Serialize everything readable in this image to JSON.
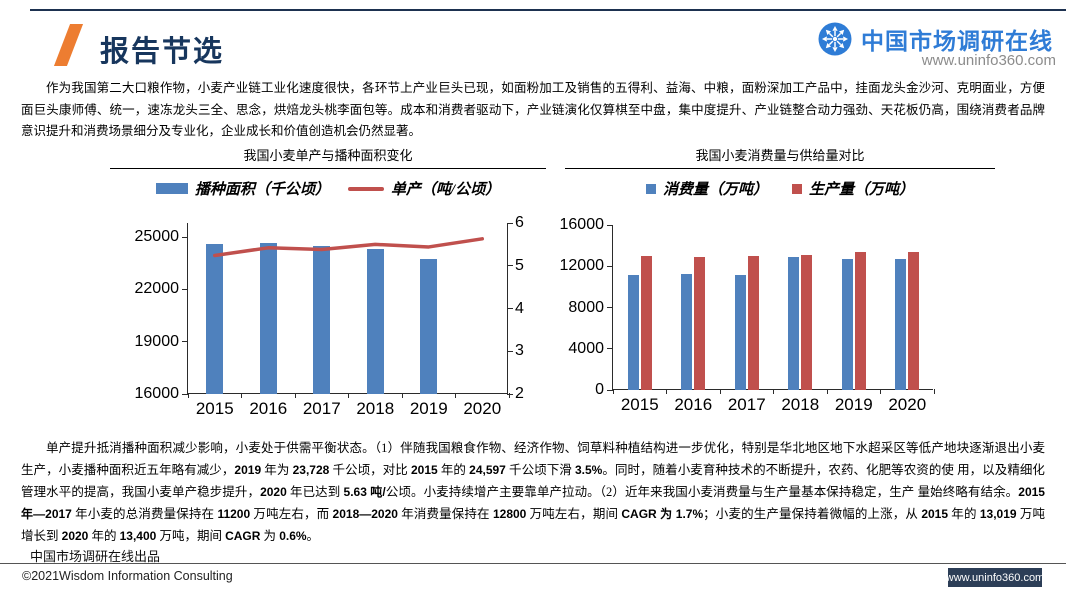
{
  "header": {
    "title": "报告节选",
    "logo_text": "中国市场调研在线",
    "logo_url": "www.uninfo360.com"
  },
  "paragraphs": {
    "intro": "作为我国第二大口粮作物，小麦产业链工业化速度很快，各环节上产业巨头已现，如面粉加工及销售的五得利、益海、中粮，面粉深加工产品中，挂面龙头金沙河、克明面业，方便面巨头康师傅、统一，速冻龙头三全、思念，烘焙龙头桃李面包等。成本和消费者驱动下，产业链演化仅算棋至中盘，集中度提升、产业链整合动力强劲、天花板仍高，围绕消费者品牌意识提升和消费场景细分及专业化，企业成长和价值创造机会仍然显著。",
    "analysis_runs": [
      {
        "t": "单产提升抵消播种面积减少影响，小麦处于供需平衡状态。（1）伴随我国粮食作物、经济作物、饲草料种植结构进一步优化，特别是华北地区地下水超采区等低产地块逐渐退出小麦生产，小麦播种面积近五年略有减少，"
      },
      {
        "t": "2019",
        "b": true
      },
      {
        "t": " 年为 "
      },
      {
        "t": "23,728",
        "b": true
      },
      {
        "t": " 千公顷，对比 "
      },
      {
        "t": "2015",
        "b": true
      },
      {
        "t": " 年的 "
      },
      {
        "t": "24,597",
        "b": true
      },
      {
        "t": " 千公顷下滑 "
      },
      {
        "t": "3.5%",
        "b": true
      },
      {
        "t": "。同时，随着小麦育种技术的不断提升，农药、化肥等农资的使 用，以及精细化管理水平的提高，我国小麦单产稳步提升，"
      },
      {
        "t": "2020",
        "b": true
      },
      {
        "t": " 年已达到 "
      },
      {
        "t": "5.63 吨/",
        "b": true
      },
      {
        "t": "公顷。小麦持续增产主要靠单产拉动。（2）近年来我国小麦消费量与生产量基本保持稳定，生产 量始终略有结余。"
      },
      {
        "t": "2015 年—2017",
        "b": true
      },
      {
        "t": " 年小麦的总消费量保持在 "
      },
      {
        "t": "11200",
        "b": true
      },
      {
        "t": " 万吨左右，而 "
      },
      {
        "t": "2018—2020",
        "b": true
      },
      {
        "t": " 年消费量保持在 "
      },
      {
        "t": "12800",
        "b": true
      },
      {
        "t": " 万吨左右，期间 "
      },
      {
        "t": "CAGR 为 1.7%",
        "b": true
      },
      {
        "t": "；小麦的生产量保持着微幅的上涨，从 "
      },
      {
        "t": "2015",
        "b": true
      },
      {
        "t": " 年的 "
      },
      {
        "t": "13,019",
        "b": true
      },
      {
        "t": " 万吨增长到 "
      },
      {
        "t": "2020",
        "b": true
      },
      {
        "t": " 年的 "
      },
      {
        "t": "13,400",
        "b": true
      },
      {
        "t": " 万吨，期间 "
      },
      {
        "t": "CAGR",
        "b": true
      },
      {
        "t": " 为 "
      },
      {
        "t": "0.6%",
        "b": true
      },
      {
        "t": "。"
      }
    ]
  },
  "footer": {
    "produced_by": "中国市场调研在线出品",
    "copyright": "©2021Wisdom Information Consulting",
    "site_badge": "www.uninfo360.com"
  },
  "colors": {
    "accent_orange": "#ED7D31",
    "title_navy": "#17365D",
    "logo_blue": "#2F7CD6",
    "bar_blue": "#4F81BD",
    "series_red": "#C0504D",
    "badge_navy": "#2C3E57"
  },
  "chart_data": [
    {
      "type": "bar",
      "title": "我国小麦单产与播种面积变化",
      "categories": [
        "2015",
        "2016",
        "2017",
        "2018",
        "2019",
        "2020"
      ],
      "series": [
        {
          "name": "播种面积（千公顷）",
          "type": "bar",
          "axis": "left",
          "color": "#4F81BD",
          "values": [
            24597,
            24680,
            24500,
            24330,
            23728,
            null
          ]
        },
        {
          "name": "单产（吨/公顷）",
          "type": "line",
          "axis": "right",
          "color": "#C0504D",
          "values": [
            5.24,
            5.42,
            5.38,
            5.5,
            5.44,
            5.63
          ]
        }
      ],
      "axes": {
        "left": {
          "min": 16000,
          "max": 25808,
          "ticks": [
            16000,
            19000,
            22000,
            25000
          ]
        },
        "right": {
          "min": 2,
          "max": 6,
          "ticks": [
            2,
            3,
            4,
            5,
            6
          ]
        }
      },
      "grid": false,
      "legend_position": "top"
    },
    {
      "type": "bar",
      "title": "我国小麦消费量与供给量对比",
      "categories": [
        "2015",
        "2016",
        "2017",
        "2018",
        "2019",
        "2020"
      ],
      "series": [
        {
          "name": "消费量（万吨）",
          "type": "bar",
          "axis": "left",
          "color": "#4F81BD",
          "values": [
            11200,
            11250,
            11150,
            12850,
            12700,
            12720
          ]
        },
        {
          "name": "生产量（万吨）",
          "type": "bar",
          "axis": "left",
          "color": "#C0504D",
          "values": [
            13019,
            12870,
            12950,
            13130,
            13350,
            13400
          ]
        }
      ],
      "axes": {
        "left": {
          "min": 0,
          "max": 16000,
          "ticks": [
            0,
            4000,
            8000,
            12000,
            16000
          ]
        }
      },
      "grid": false,
      "legend_position": "top"
    }
  ]
}
